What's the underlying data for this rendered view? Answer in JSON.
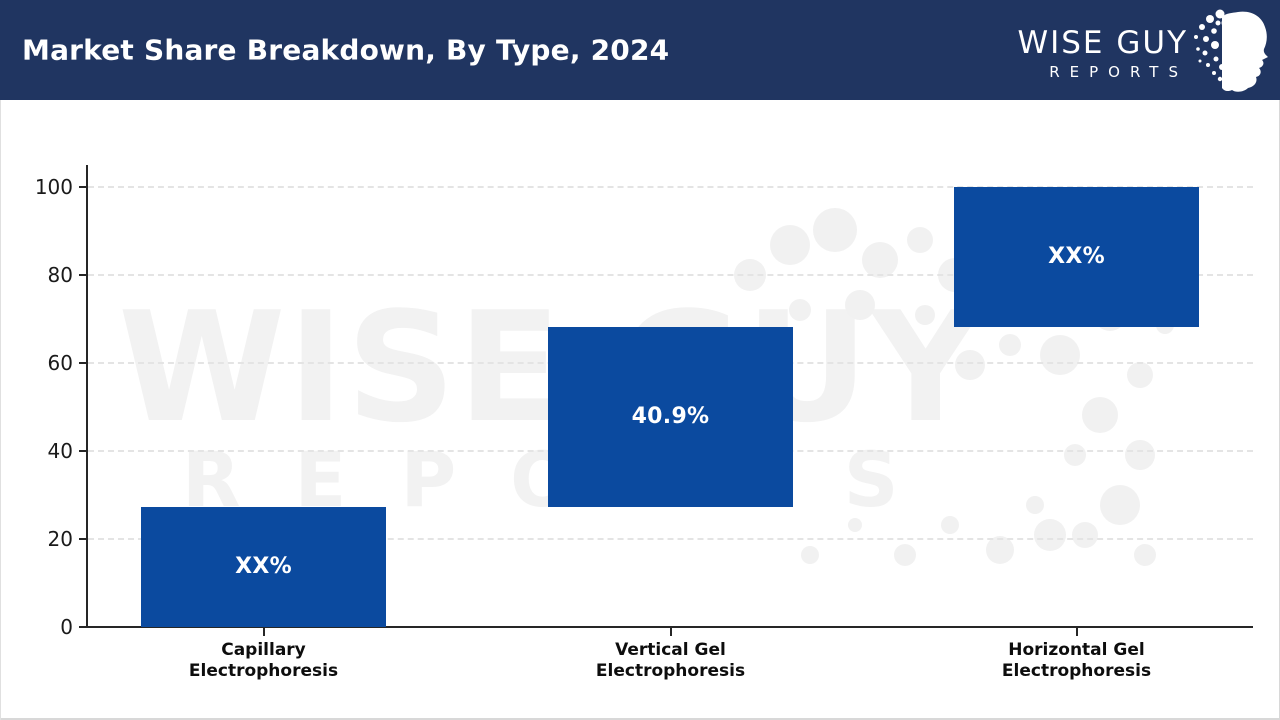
{
  "header": {
    "title": "Market Share Breakdown, By Type, 2024",
    "logo": {
      "name": "WISE GUY",
      "sub": "REPORTS"
    }
  },
  "watermark": {
    "line1": "WISE GUY",
    "line2": "REPORTS"
  },
  "chart_data": {
    "type": "bar",
    "subtype": "floating-waterfall",
    "title": "Market Share Breakdown, By Type, 2024",
    "categories": [
      "Capillary Electrophoresis",
      "Vertical Gel Electrophoresis",
      "Horizontal Gel Electrophoresis"
    ],
    "category_lines": [
      [
        "Capillary",
        "Electrophoresis"
      ],
      [
        "Vertical Gel",
        "Electrophoresis"
      ],
      [
        "Horizontal Gel",
        "Electrophoresis"
      ]
    ],
    "bars": [
      {
        "category": "Capillary Electrophoresis",
        "label": "XX%",
        "start": 0,
        "end": 27.3
      },
      {
        "category": "Vertical Gel Electrophoresis",
        "label": "40.9%",
        "start": 27.3,
        "end": 68.2
      },
      {
        "category": "Horizontal Gel Electrophoresis",
        "label": "XX%",
        "start": 68.2,
        "end": 100
      }
    ],
    "yticks": [
      0,
      20,
      40,
      60,
      80,
      100
    ],
    "ylim": [
      0,
      100
    ],
    "xlabel": "",
    "ylabel": "",
    "grid": "dashed-horizontal",
    "legend": "none",
    "bar_color": "#0b4a9f",
    "value_label_color": "#ffffff"
  },
  "icons": {
    "logo_face": "dotted-head-profile",
    "watermark_face": "dotted-head-profile-watermark"
  },
  "colors": {
    "header_bg": "#203561",
    "header_text": "#ffffff",
    "bar": "#0b4a9f",
    "axis": "#262626",
    "grid": "#e4e4e4",
    "tick_label": "#1a1a1a",
    "watermark": "#f2f2f2",
    "page_border": "#d8d8d8"
  }
}
